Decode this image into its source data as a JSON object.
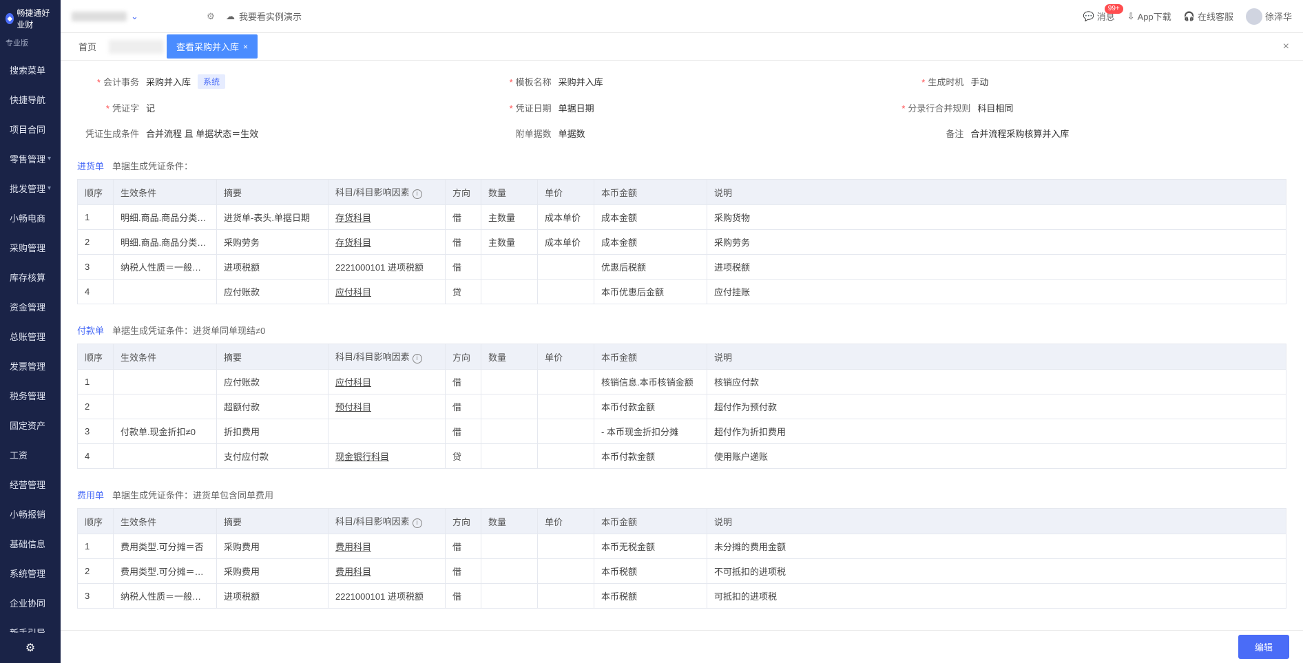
{
  "sidebar": {
    "brand": "畅捷通好业财",
    "edition": "专业版",
    "items": [
      {
        "label": "搜索菜单",
        "arrow": false
      },
      {
        "label": "快捷导航",
        "arrow": false
      },
      {
        "label": "项目合同",
        "arrow": false
      },
      {
        "label": "零售管理",
        "arrow": true
      },
      {
        "label": "批发管理",
        "arrow": true
      },
      {
        "label": "小畅电商",
        "arrow": false
      },
      {
        "label": "采购管理",
        "arrow": false
      },
      {
        "label": "库存核算",
        "arrow": false
      },
      {
        "label": "资金管理",
        "arrow": false
      },
      {
        "label": "总账管理",
        "arrow": false
      },
      {
        "label": "发票管理",
        "arrow": false
      },
      {
        "label": "税务管理",
        "arrow": false
      },
      {
        "label": "固定资产",
        "arrow": false
      },
      {
        "label": "工资",
        "arrow": false
      },
      {
        "label": "经营管理",
        "arrow": false
      },
      {
        "label": "小畅报销",
        "arrow": false
      },
      {
        "label": "基础信息",
        "arrow": false
      },
      {
        "label": "系统管理",
        "arrow": false
      },
      {
        "label": "企业协同",
        "arrow": false
      },
      {
        "label": "新手引导",
        "arrow": false
      }
    ]
  },
  "topbar": {
    "demo_text": "我要看实例演示",
    "msg": "消息",
    "msg_badge": "99+",
    "download": "App下载",
    "service": "在线客服",
    "user": "徐泽华"
  },
  "tabs": {
    "home": "首页",
    "active": "查看采购并入库"
  },
  "form": {
    "f1_label": "会计事务",
    "f1_value": "采购并入库",
    "f1_chip": "系统",
    "f2_label": "模板名称",
    "f2_value": "采购并入库",
    "f3_label": "生成时机",
    "f3_value": "手动",
    "f4_label": "凭证字",
    "f4_value": "记",
    "f5_label": "凭证日期",
    "f5_value": "单据日期",
    "f6_label": "分录行合并规则",
    "f6_value": "科目相同",
    "f7_label": "凭证生成条件",
    "f7_value": "合并流程 且 单据状态＝生效",
    "f8_label": "附单据数",
    "f8_value": "单据数",
    "f9_label": "备注",
    "f9_value": "合并流程采购核算并入库"
  },
  "columns": {
    "seq": "顺序",
    "cond": "生效条件",
    "summary": "摘要",
    "subject": "科目/科目影响因素",
    "dir": "方向",
    "qty": "数量",
    "price": "单价",
    "amt": "本币金额",
    "desc": "说明",
    "info": "ⓘ"
  },
  "sections": [
    {
      "title": "进货单",
      "cond_label": "单据生成凭证条件：",
      "cond_value": "",
      "rows": [
        {
          "seq": "1",
          "cond": "明细.商品.商品分类＝货物",
          "summary": "进货单-表头.单据日期",
          "subject": "存货科目",
          "subject_link": true,
          "dir": "借",
          "qty": "主数量",
          "price": "成本单价",
          "amt": "成本金额",
          "desc": "采购货物"
        },
        {
          "seq": "2",
          "cond": "明细.商品.商品分类＝劳务",
          "summary": "采购劳务",
          "subject": "存货科目",
          "subject_link": true,
          "dir": "借",
          "qty": "主数量",
          "price": "成本单价",
          "amt": "成本金额",
          "desc": "采购劳务"
        },
        {
          "seq": "3",
          "cond": "纳税人性质＝一般纳税人 且 发",
          "summary": "进项税额",
          "subject": "2221000101 进项税额",
          "subject_link": false,
          "dir": "借",
          "qty": "",
          "price": "",
          "amt": "优惠后税额",
          "desc": "进项税额"
        },
        {
          "seq": "4",
          "cond": "",
          "summary": "应付账款",
          "subject": "应付科目",
          "subject_link": true,
          "dir": "贷",
          "qty": "",
          "price": "",
          "amt": "本币优惠后金额",
          "desc": "应付挂账"
        }
      ]
    },
    {
      "title": "付款单",
      "cond_label": "单据生成凭证条件：",
      "cond_value": "进货单同单现结≠0",
      "rows": [
        {
          "seq": "1",
          "cond": "",
          "summary": "应付账款",
          "subject": "应付科目",
          "subject_link": true,
          "dir": "借",
          "qty": "",
          "price": "",
          "amt": "核销信息.本币核销金额",
          "desc": "核销应付款"
        },
        {
          "seq": "2",
          "cond": "",
          "summary": "超额付款",
          "subject": "预付科目",
          "subject_link": true,
          "dir": "借",
          "qty": "",
          "price": "",
          "amt": "本币付款金额",
          "desc": "超付作为预付款"
        },
        {
          "seq": "3",
          "cond": "付款单.现金折扣≠0",
          "summary": "折扣费用",
          "subject": "",
          "subject_link": false,
          "dir": "借",
          "qty": "",
          "price": "",
          "amt": "- 本币现金折扣分摊",
          "desc": "超付作为折扣费用"
        },
        {
          "seq": "4",
          "cond": "",
          "summary": "支付应付款",
          "subject": "现金银行科目",
          "subject_link": true,
          "dir": "贷",
          "qty": "",
          "price": "",
          "amt": "本币付款金额",
          "desc": "使用账户递账"
        }
      ]
    },
    {
      "title": "费用单",
      "cond_label": "单据生成凭证条件：",
      "cond_value": "进货单包含同单费用",
      "rows": [
        {
          "seq": "1",
          "cond": "费用类型.可分摊＝否",
          "summary": "采购费用",
          "subject": "费用科目",
          "subject_link": true,
          "dir": "借",
          "qty": "",
          "price": "",
          "amt": "本币无税金额",
          "desc": "未分摊的费用金额"
        },
        {
          "seq": "2",
          "cond": "费用类型.可分摊＝否 且 (纳税",
          "summary": "采购费用",
          "subject": "费用科目",
          "subject_link": true,
          "dir": "借",
          "qty": "",
          "price": "",
          "amt": "本币税额",
          "desc": "不可抵扣的进项税"
        },
        {
          "seq": "3",
          "cond": "纳税人性质＝一般纳税人 且 (",
          "summary": "进项税额",
          "subject": "2221000101 进项税额",
          "subject_link": false,
          "dir": "借",
          "qty": "",
          "price": "",
          "amt": "本币税额",
          "desc": "可抵扣的进项税"
        }
      ]
    }
  ],
  "footer": {
    "edit": "编辑"
  }
}
